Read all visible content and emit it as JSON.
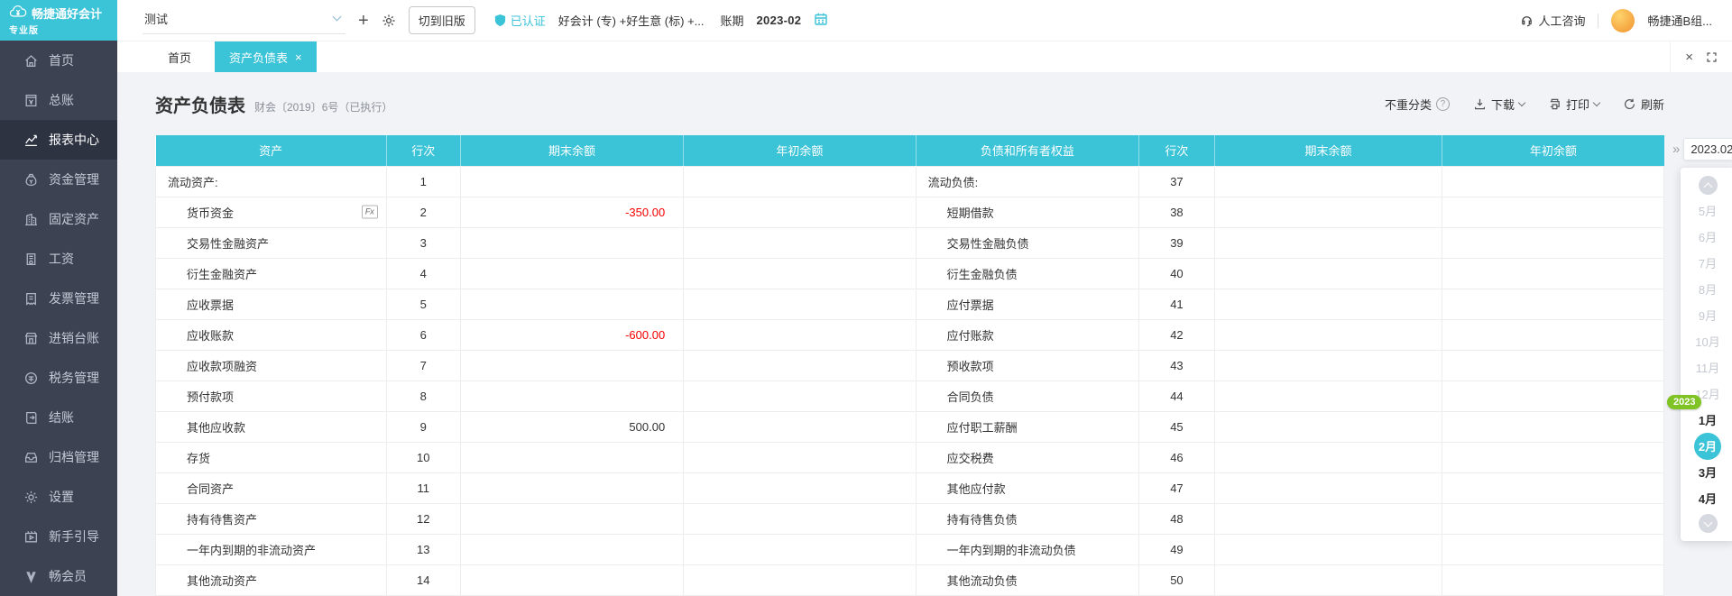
{
  "app": {
    "brand": "畅捷通好会计",
    "edition": "专业版",
    "workspace": "测试",
    "switch_old_label": "切到旧版",
    "verified_label": "已认证",
    "products": "好会计 (专) +好生意 (标) +...",
    "period_label": "账期",
    "period_value": "2023-02",
    "support_label": "人工咨询",
    "user_name": "畅捷通B组...",
    "icons": [
      "cloud-logo-icon",
      "plus-icon",
      "gear-icon",
      "shield-verified-icon",
      "calendar-icon",
      "headset-icon",
      "avatar"
    ]
  },
  "sidebar": {
    "active_index": 2,
    "items": [
      {
        "id": "home",
        "label": "首页",
        "icon": "home-icon"
      },
      {
        "id": "ledger",
        "label": "总账",
        "icon": "ledger-icon"
      },
      {
        "id": "report-center",
        "label": "报表中心",
        "icon": "report-center-icon"
      },
      {
        "id": "funds",
        "label": "资金管理",
        "icon": "funds-icon"
      },
      {
        "id": "fixed-assets",
        "label": "固定资产",
        "icon": "fixed-assets-icon"
      },
      {
        "id": "payroll",
        "label": "工资",
        "icon": "payroll-icon"
      },
      {
        "id": "invoice",
        "label": "发票管理",
        "icon": "invoice-icon"
      },
      {
        "id": "inventory",
        "label": "进销台账",
        "icon": "inventory-icon"
      },
      {
        "id": "tax",
        "label": "税务管理",
        "icon": "tax-icon"
      },
      {
        "id": "closing",
        "label": "结账",
        "icon": "closing-icon"
      },
      {
        "id": "archive",
        "label": "归档管理",
        "icon": "archive-icon"
      },
      {
        "id": "settings",
        "label": "设置",
        "icon": "settings-icon"
      },
      {
        "id": "guide",
        "label": "新手引导",
        "icon": "guide-icon"
      },
      {
        "id": "member",
        "label": "畅会员",
        "icon": "member-icon"
      }
    ]
  },
  "tabs": {
    "home": "首页",
    "active": "资产负债表",
    "close_glyph": "×"
  },
  "page": {
    "title": "资产负债表",
    "subtitle": "财会〔2019〕6号（已执行）",
    "toolbar": {
      "reclass_label": "不重分类",
      "download_label": "下载",
      "print_label": "打印",
      "refresh_label": "刷新"
    }
  },
  "table": {
    "headers": [
      "资产",
      "行次",
      "期末余额",
      "年初余额",
      "负债和所有者权益",
      "行次",
      "期末余额",
      "年初余额"
    ],
    "rows": [
      {
        "group": true,
        "asset": "流动资产:",
        "line_a": "1",
        "end_a": "",
        "begin_a": "",
        "liability": "流动负债:",
        "line_b": "37",
        "end_b": "",
        "begin_b": ""
      },
      {
        "fx": true,
        "asset": "货币资金",
        "line_a": "2",
        "end_a": "-350.00",
        "begin_a": "",
        "liability": "短期借款",
        "line_b": "38",
        "end_b": "",
        "begin_b": ""
      },
      {
        "asset": "交易性金融资产",
        "line_a": "3",
        "end_a": "",
        "begin_a": "",
        "liability": "交易性金融负债",
        "line_b": "39",
        "end_b": "",
        "begin_b": ""
      },
      {
        "asset": "衍生金融资产",
        "line_a": "4",
        "end_a": "",
        "begin_a": "",
        "liability": "衍生金融负债",
        "line_b": "40",
        "end_b": "",
        "begin_b": ""
      },
      {
        "asset": "应收票据",
        "line_a": "5",
        "end_a": "",
        "begin_a": "",
        "liability": "应付票据",
        "line_b": "41",
        "end_b": "",
        "begin_b": ""
      },
      {
        "asset": "应收账款",
        "line_a": "6",
        "end_a": "-600.00",
        "begin_a": "",
        "liability": "应付账款",
        "line_b": "42",
        "end_b": "",
        "begin_b": ""
      },
      {
        "asset": "应收款项融资",
        "line_a": "7",
        "end_a": "",
        "begin_a": "",
        "liability": "预收款项",
        "line_b": "43",
        "end_b": "",
        "begin_b": ""
      },
      {
        "asset": "预付款项",
        "line_a": "8",
        "end_a": "",
        "begin_a": "",
        "liability": "合同负债",
        "line_b": "44",
        "end_b": "",
        "begin_b": ""
      },
      {
        "asset": "其他应收款",
        "line_a": "9",
        "end_a": "500.00",
        "begin_a": "",
        "liability": "应付职工薪酬",
        "line_b": "45",
        "end_b": "",
        "begin_b": ""
      },
      {
        "asset": "存货",
        "line_a": "10",
        "end_a": "",
        "begin_a": "",
        "liability": "应交税费",
        "line_b": "46",
        "end_b": "",
        "begin_b": ""
      },
      {
        "asset": "合同资产",
        "line_a": "11",
        "end_a": "",
        "begin_a": "",
        "liability": "其他应付款",
        "line_b": "47",
        "end_b": "",
        "begin_b": ""
      },
      {
        "asset": "持有待售资产",
        "line_a": "12",
        "end_a": "",
        "begin_a": "",
        "liability": "持有待售负债",
        "line_b": "48",
        "end_b": "",
        "begin_b": ""
      },
      {
        "asset": "一年内到期的非流动资产",
        "line_a": "13",
        "end_a": "",
        "begin_a": "",
        "liability": "一年内到期的非流动负债",
        "line_b": "49",
        "end_b": "",
        "begin_b": ""
      },
      {
        "asset": "其他流动资产",
        "line_a": "14",
        "end_a": "",
        "begin_a": "",
        "liability": "其他流动负债",
        "line_b": "50",
        "end_b": "",
        "begin_b": ""
      }
    ]
  },
  "calendar": {
    "current": "2023.02",
    "collapse_glyph": "»",
    "year_badge": "2023",
    "months": [
      {
        "label": "5月",
        "state": "disabled"
      },
      {
        "label": "6月",
        "state": "disabled"
      },
      {
        "label": "7月",
        "state": "disabled"
      },
      {
        "label": "8月",
        "state": "disabled"
      },
      {
        "label": "9月",
        "state": "disabled"
      },
      {
        "label": "10月",
        "state": "disabled"
      },
      {
        "label": "11月",
        "state": "disabled"
      },
      {
        "label": "12月",
        "state": "disabled"
      },
      {
        "label": "1月",
        "state": "normal"
      },
      {
        "label": "2月",
        "state": "active"
      },
      {
        "label": "3月",
        "state": "normal"
      },
      {
        "label": "4月",
        "state": "normal"
      }
    ]
  },
  "colors": {
    "accent": "#3bc3d7",
    "negative": "#f40000",
    "year_badge_bg": "#7fc324",
    "sidebar_bg": "#3d4252"
  }
}
